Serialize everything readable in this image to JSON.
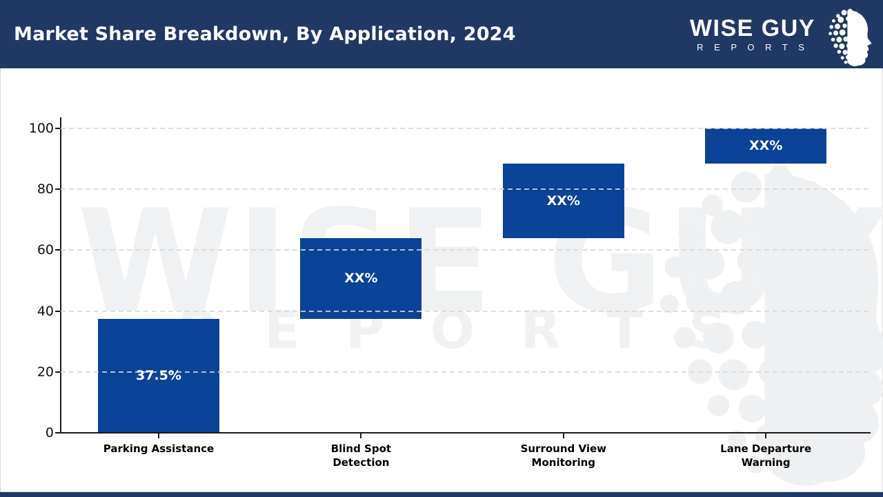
{
  "header": {
    "title": "Market Share Breakdown, By Application, 2024",
    "logo": {
      "name_line": "WISE GUY",
      "reports_line": "R E P O R T S"
    }
  },
  "watermark": {
    "name_line": "WISE GUY",
    "reports_line": "R E P O R T S"
  },
  "colors": {
    "header_bg": "#1f3864",
    "bar": "#0a4397",
    "grid": "#d9d9d9",
    "axis": "#1a1a1a",
    "bar_label": "#ffffff",
    "watermark": "#f0f1f2"
  },
  "chart_data": {
    "type": "bar",
    "variant": "waterfall_floating_segments",
    "title": "Market Share Breakdown, By Application, 2024",
    "categories": [
      "Parking Assistance",
      "Blind Spot Detection",
      "Surround View Monitoring",
      "Lane Departure Warning"
    ],
    "category_label_lines": [
      [
        "Parking Assistance"
      ],
      [
        "Blind Spot",
        "Detection"
      ],
      [
        "Surround View",
        "Monitoring"
      ],
      [
        "Lane Departure",
        "Warning"
      ]
    ],
    "segments": [
      {
        "category": "Parking Assistance",
        "start": 0,
        "end": 37.5,
        "label": "37.5%"
      },
      {
        "category": "Blind Spot Detection",
        "start": 37.5,
        "end": 64,
        "label": "XX%"
      },
      {
        "category": "Surround View Monitoring",
        "start": 64,
        "end": 88.5,
        "label": "XX%"
      },
      {
        "category": "Lane Departure Warning",
        "start": 88.5,
        "end": 100,
        "label": "XX%"
      }
    ],
    "ylim": [
      0,
      100
    ],
    "yticks": [
      0,
      20,
      40,
      60,
      80,
      100
    ],
    "xlabel": "",
    "ylabel": "",
    "grid": "horizontal-dashed-drawn-over-bars",
    "legend": "none"
  }
}
